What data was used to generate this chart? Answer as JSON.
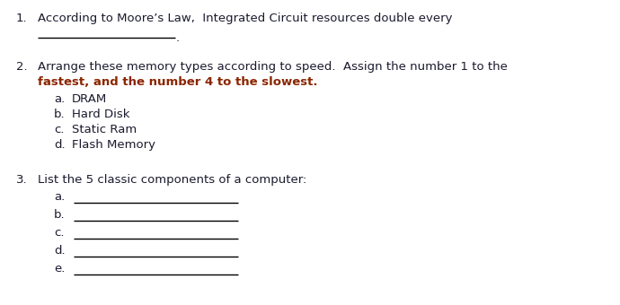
{
  "background_color": "#ffffff",
  "text_color": "#1a1a2e",
  "text_color_bold": "#8B2500",
  "line_color": "#000000",
  "q1_number": "1.",
  "q1_text": "According to Moore’s Law,  Integrated Circuit resources double every",
  "q2_number": "2.",
  "q2_line1": "Arrange these memory types according to speed.  Assign the number 1 to the",
  "q2_line2": "fastest, and the number 4 to the slowest.",
  "q2_items": [
    [
      "a.",
      "DRAM"
    ],
    [
      "b.",
      "Hard Disk"
    ],
    [
      "c.",
      "Static Ram"
    ],
    [
      "d.",
      "Flash Memory"
    ]
  ],
  "q3_number": "3.",
  "q3_text": "List the 5 classic components of a computer:",
  "q3_labels": [
    "a.",
    "b.",
    "c.",
    "d.",
    "e."
  ],
  "font_size": 9.5,
  "font_size_bold": 9.5
}
